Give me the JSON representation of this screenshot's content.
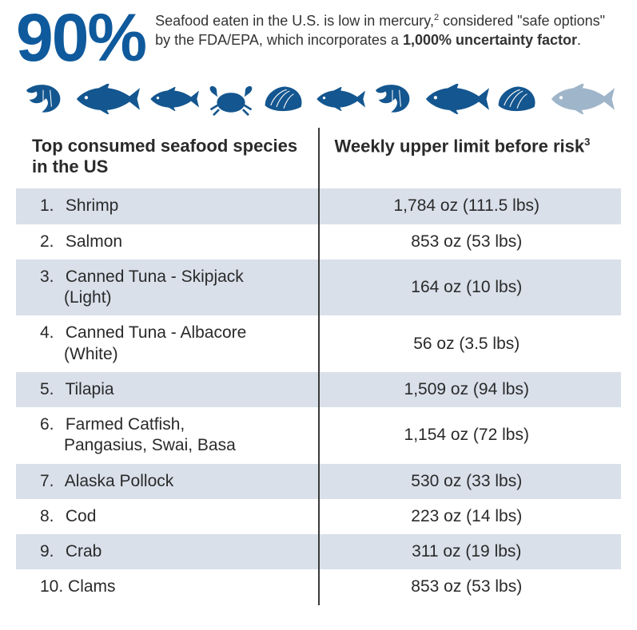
{
  "header": {
    "percent": "90%",
    "text_before_sup": "Seafood eaten in the U.S. is low in mercury,",
    "sup1": "2",
    "text_mid": " considered \"safe options\" by the FDA/EPA, which incorporates a ",
    "bold": "1,000% uncertainty factor",
    "text_after": "."
  },
  "colors": {
    "primary": "#14568f",
    "light": "#9fb5c9",
    "row_shade": "#d9e0ea",
    "text": "#2a2a2a"
  },
  "icons": [
    {
      "type": "shrimp",
      "color": "#14568f"
    },
    {
      "type": "fish",
      "color": "#14568f"
    },
    {
      "type": "fish-small",
      "color": "#14568f"
    },
    {
      "type": "crab",
      "color": "#14568f"
    },
    {
      "type": "clam",
      "color": "#14568f"
    },
    {
      "type": "fish-small",
      "color": "#14568f"
    },
    {
      "type": "shrimp",
      "color": "#14568f"
    },
    {
      "type": "fish",
      "color": "#14568f"
    },
    {
      "type": "clam",
      "color": "#14568f"
    },
    {
      "type": "fish",
      "color": "#9fb5c9"
    }
  ],
  "table": {
    "left_header": "Top consumed seafood species in the US",
    "right_header": "Weekly upper limit before risk",
    "right_header_sup": "3",
    "rows": [
      {
        "n": "1.",
        "species": "Shrimp",
        "limit": "1,784 oz (111.5 lbs)",
        "shade": true,
        "tall": false
      },
      {
        "n": "2.",
        "species": "Salmon",
        "limit": "853 oz (53 lbs)",
        "shade": false,
        "tall": false
      },
      {
        "n": "3.",
        "species": "Canned Tuna - Skipjack",
        "species2": "(Light)",
        "limit": "164 oz (10 lbs)",
        "shade": true,
        "tall": true
      },
      {
        "n": "4.",
        "species": "Canned Tuna - Albacore",
        "species2": "(White)",
        "limit": "56 oz (3.5 lbs)",
        "shade": false,
        "tall": true
      },
      {
        "n": "5.",
        "species": "Tilapia",
        "limit": "1,509 oz (94 lbs)",
        "shade": true,
        "tall": false
      },
      {
        "n": "6.",
        "species": "Farmed Catfish,",
        "species2": "Pangasius, Swai, Basa",
        "limit": "1,154 oz (72 lbs)",
        "shade": false,
        "tall": true
      },
      {
        "n": "7.",
        "species": "Alaska Pollock",
        "limit": "530 oz (33 lbs)",
        "shade": true,
        "tall": false
      },
      {
        "n": "8.",
        "species": "Cod",
        "limit": "223 oz (14 lbs)",
        "shade": false,
        "tall": false
      },
      {
        "n": "9.",
        "species": "Crab",
        "limit": "311 oz (19 lbs)",
        "shade": true,
        "tall": false
      },
      {
        "n": "10.",
        "species": "Clams",
        "limit": "853 oz (53 lbs)",
        "shade": false,
        "tall": false
      }
    ]
  }
}
